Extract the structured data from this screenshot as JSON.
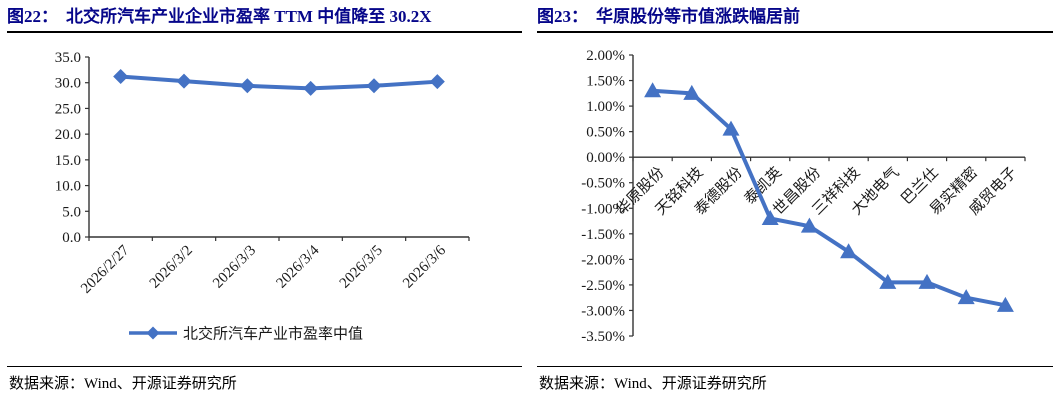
{
  "colors": {
    "title": "#06068a",
    "line": "#4472C4",
    "axis": "#333333",
    "text": "#1a1a1a",
    "rule": "#000000"
  },
  "panels": [
    {
      "title_label": "图22：",
      "title_text": "北交所汽车产业企业市盈率 TTM 中值降至 30.2X",
      "source_label": "数据来源：",
      "source_text": "Wind、开源证券研究所"
    },
    {
      "title_label": "图23：",
      "title_text": "华原股份等市值涨跌幅居前",
      "source_label": "数据来源：",
      "source_text": "Wind、开源证券研究所"
    }
  ],
  "chart_data": [
    {
      "type": "line",
      "title": "图22：北交所汽车产业企业市盈率 TTM 中值降至 30.2X",
      "categories": [
        "2026/2/27",
        "2026/3/2",
        "2026/3/3",
        "2026/3/4",
        "2026/3/5",
        "2026/3/6"
      ],
      "series": [
        {
          "name": "北交所汽车产业市盈率中值",
          "values": [
            31.2,
            30.3,
            29.4,
            28.9,
            29.4,
            30.2
          ]
        }
      ],
      "ylim": [
        0,
        35
      ],
      "ytick_step": 5,
      "ytick_format": "fixed1",
      "xlabel": "",
      "ylabel": "",
      "grid": false,
      "marker": "diamond",
      "line_color": "#4472C4",
      "legend": {
        "show": true,
        "position": "bottom"
      }
    },
    {
      "type": "line",
      "title": "图23：华原股份等市值涨跌幅居前",
      "categories": [
        "华原股份",
        "天铭科技",
        "泰德股份",
        "泰凯英",
        "世昌股份",
        "三祥科技",
        "大地电气",
        "巴兰仕",
        "易实精密",
        "威贸电子"
      ],
      "series": [
        {
          "name": "市值涨跌幅",
          "values": [
            1.3,
            1.25,
            0.55,
            -1.2,
            -1.35,
            -1.85,
            -2.45,
            -2.45,
            -2.75,
            -2.9
          ]
        }
      ],
      "ylim": [
        -3.5,
        2.0
      ],
      "ytick_step": 0.5,
      "ytick_format": "percent2",
      "xlabel": "",
      "ylabel": "",
      "grid": false,
      "marker": "triangle",
      "line_color": "#4472C4",
      "legend": {
        "show": false,
        "position": "none"
      }
    }
  ]
}
